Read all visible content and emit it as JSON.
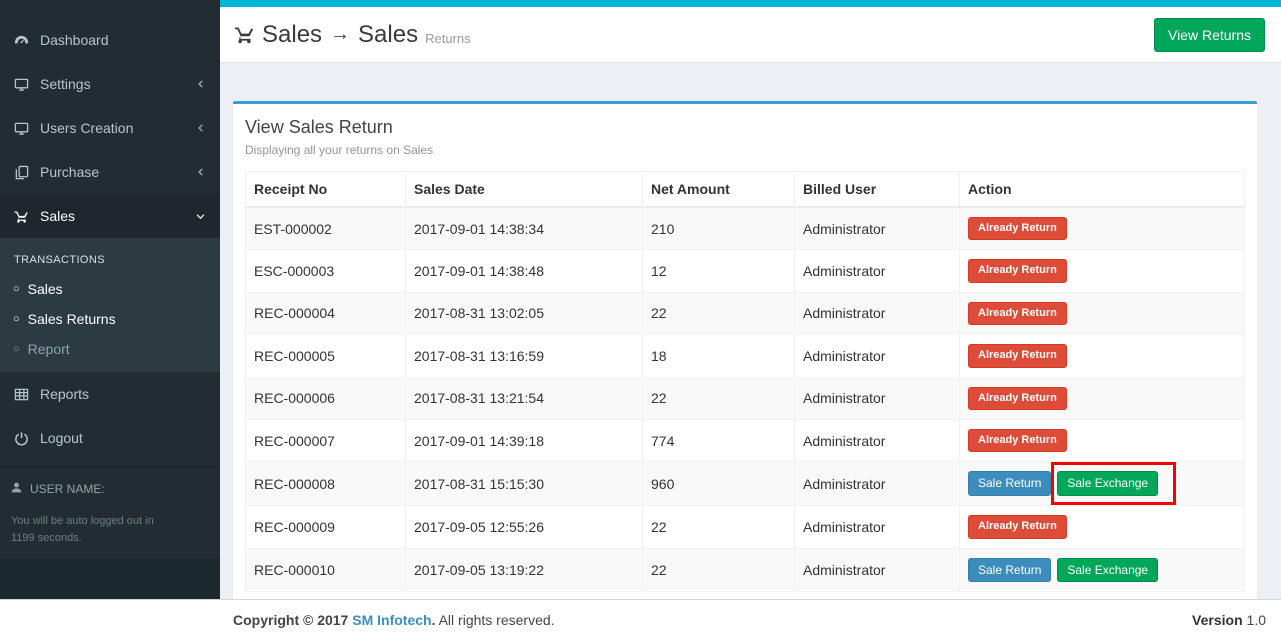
{
  "sidebar": {
    "items": [
      {
        "label": "Dashboard"
      },
      {
        "label": "Settings"
      },
      {
        "label": "Users Creation"
      },
      {
        "label": "Purchase"
      },
      {
        "label": "Sales"
      }
    ],
    "transactions_header": "TRANSACTIONS",
    "sub_items": [
      {
        "label": "Sales"
      },
      {
        "label": "Sales Returns"
      },
      {
        "label": "Report"
      }
    ],
    "reports_label": "Reports",
    "logout_label": "Logout",
    "user_label": "USER NAME:",
    "auto_logout_line1": "You will be auto logged out in",
    "auto_logout_line2": "1199 seconds."
  },
  "header": {
    "crumb_primary": "Sales",
    "crumb_secondary": "Sales",
    "crumb_suffix": "Returns",
    "view_returns_button": "View Returns"
  },
  "panel": {
    "title": "View Sales Return",
    "subtitle": "Displaying all your returns on Sales"
  },
  "table": {
    "columns": [
      "Receipt No",
      "Sales Date",
      "Net Amount",
      "Billed User",
      "Action"
    ],
    "action_labels": {
      "already_return": "Already Return",
      "sale_return": "Sale Return",
      "sale_exchange": "Sale Exchange"
    },
    "rows": [
      {
        "receipt_no": "EST-000002",
        "sales_date": "2017-09-01 14:38:34",
        "net_amount": "210",
        "billed_user": "Administrator",
        "actions": [
          "already_return"
        ]
      },
      {
        "receipt_no": "ESC-000003",
        "sales_date": "2017-09-01 14:38:48",
        "net_amount": "12",
        "billed_user": "Administrator",
        "actions": [
          "already_return"
        ]
      },
      {
        "receipt_no": "REC-000004",
        "sales_date": "2017-08-31 13:02:05",
        "net_amount": "22",
        "billed_user": "Administrator",
        "actions": [
          "already_return"
        ]
      },
      {
        "receipt_no": "REC-000005",
        "sales_date": "2017-08-31 13:16:59",
        "net_amount": "18",
        "billed_user": "Administrator",
        "actions": [
          "already_return"
        ]
      },
      {
        "receipt_no": "REC-000006",
        "sales_date": "2017-08-31 13:21:54",
        "net_amount": "22",
        "billed_user": "Administrator",
        "actions": [
          "already_return"
        ]
      },
      {
        "receipt_no": "REC-000007",
        "sales_date": "2017-09-01 14:39:18",
        "net_amount": "774",
        "billed_user": "Administrator",
        "actions": [
          "already_return"
        ]
      },
      {
        "receipt_no": "REC-000008",
        "sales_date": "2017-08-31 15:15:30",
        "net_amount": "960",
        "billed_user": "Administrator",
        "actions": [
          "sale_return",
          "sale_exchange"
        ],
        "highlight_action": "sale_exchange"
      },
      {
        "receipt_no": "REC-000009",
        "sales_date": "2017-09-05 12:55:26",
        "net_amount": "22",
        "billed_user": "Administrator",
        "actions": [
          "already_return"
        ]
      },
      {
        "receipt_no": "REC-000010",
        "sales_date": "2017-09-05 13:19:22",
        "net_amount": "22",
        "billed_user": "Administrator",
        "actions": [
          "sale_return",
          "sale_exchange"
        ]
      }
    ]
  },
  "footer": {
    "copyright_prefix": "Copyright © 2017",
    "company": "SM Infotech",
    "copyright_dot": ".",
    "rights": "All rights reserved.",
    "version_label": "Version",
    "version_value": "1.0"
  },
  "colors": {
    "sidebar_bg": "#222d32",
    "sidebar_active_bg": "#1e282c",
    "submenu_bg": "#2c3b41",
    "top_strip": "#00b6d8",
    "card_border": "#3c9cdb",
    "green": "#00a65a",
    "blue": "#3c8dbc",
    "red_badge": "#dd4b39",
    "annotation_red": "#f40000",
    "content_bg": "#ecf0f5"
  }
}
